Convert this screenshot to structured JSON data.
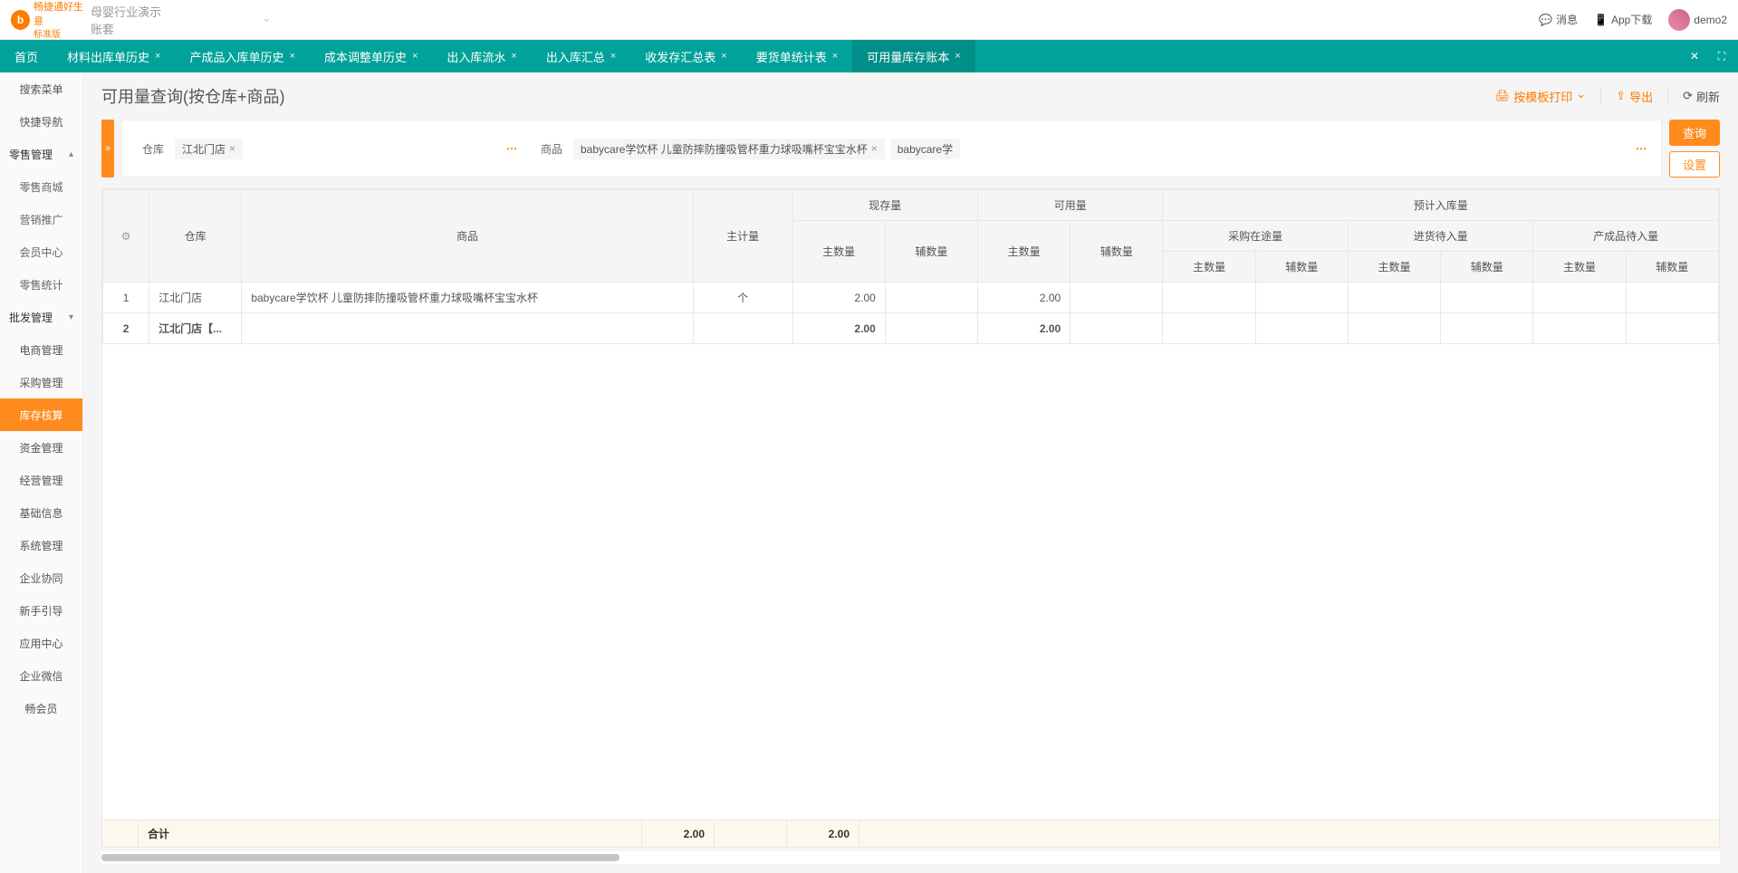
{
  "header": {
    "logo_name": "畅捷通好生意",
    "logo_edition": "标准版",
    "account_set": "母婴行业演示账套",
    "msg_label": "消息",
    "app_label": "App下载",
    "user": "demo2"
  },
  "tabs": [
    {
      "label": "首页",
      "closable": false
    },
    {
      "label": "材料出库单历史",
      "closable": true
    },
    {
      "label": "产成品入库单历史",
      "closable": true
    },
    {
      "label": "成本调整单历史",
      "closable": true
    },
    {
      "label": "出入库流水",
      "closable": true
    },
    {
      "label": "出入库汇总",
      "closable": true
    },
    {
      "label": "收发存汇总表",
      "closable": true
    },
    {
      "label": "要货单统计表",
      "closable": true
    },
    {
      "label": "可用量库存账本",
      "closable": true,
      "active": true
    }
  ],
  "sidebar": [
    {
      "label": "搜索菜单",
      "type": "top"
    },
    {
      "label": "快捷导航",
      "type": "top"
    },
    {
      "label": "零售管理",
      "type": "group",
      "expanded": true
    },
    {
      "label": "零售商城",
      "type": "sub"
    },
    {
      "label": "营销推广",
      "type": "sub"
    },
    {
      "label": "会员中心",
      "type": "sub"
    },
    {
      "label": "零售统计",
      "type": "sub"
    },
    {
      "label": "批发管理",
      "type": "group",
      "expanded": false
    },
    {
      "label": "电商管理",
      "type": "top"
    },
    {
      "label": "采购管理",
      "type": "top"
    },
    {
      "label": "库存核算",
      "type": "top",
      "active": true
    },
    {
      "label": "资金管理",
      "type": "top"
    },
    {
      "label": "经营管理",
      "type": "top"
    },
    {
      "label": "基础信息",
      "type": "top"
    },
    {
      "label": "系统管理",
      "type": "top"
    },
    {
      "label": "企业协同",
      "type": "top"
    },
    {
      "label": "新手引导",
      "type": "top"
    },
    {
      "label": "应用中心",
      "type": "top"
    },
    {
      "label": "企业微信",
      "type": "top"
    },
    {
      "label": "畅会员",
      "type": "top"
    }
  ],
  "page": {
    "title": "可用量查询(按仓库+商品)",
    "actions": {
      "print": "按模板打印",
      "export": "导出",
      "refresh": "刷新"
    }
  },
  "filter": {
    "warehouse_label": "仓库",
    "warehouse_tag": "江北门店",
    "product_label": "商品",
    "product_tag1": "babycare学饮杯 儿童防摔防撞吸管杯重力球吸嘴杯宝宝水杯",
    "product_tag2": "babycare学",
    "query_btn": "查询",
    "settings_btn": "设置"
  },
  "table": {
    "columns": {
      "warehouse": "仓库",
      "product": "商品",
      "main_unit": "主计量",
      "stock_group": "现存量",
      "available_group": "可用量",
      "expected_group": "预计入库量",
      "purchase_transit": "采购在途量",
      "incoming_pending": "进货待入量",
      "finished_pending": "产成品待入量",
      "main_qty": "主数量",
      "aux_qty": "辅数量"
    },
    "rows": [
      {
        "idx": "1",
        "warehouse": "江北门店",
        "product": "babycare学饮杯 儿童防摔防撞吸管杯重力球吸嘴杯宝宝水杯",
        "unit": "个",
        "stock_main": "2.00",
        "avail_main": "2.00"
      },
      {
        "idx": "2",
        "warehouse": "江北门店【...",
        "product": "",
        "unit": "",
        "stock_main": "2.00",
        "avail_main": "2.00",
        "bold": true
      }
    ],
    "footer": {
      "label": "合计",
      "stock_main": "2.00",
      "avail_main": "2.00"
    }
  },
  "colwidths": {
    "idx": 40,
    "wh": 80,
    "prod": 390,
    "unit": 86,
    "qty": 80
  }
}
